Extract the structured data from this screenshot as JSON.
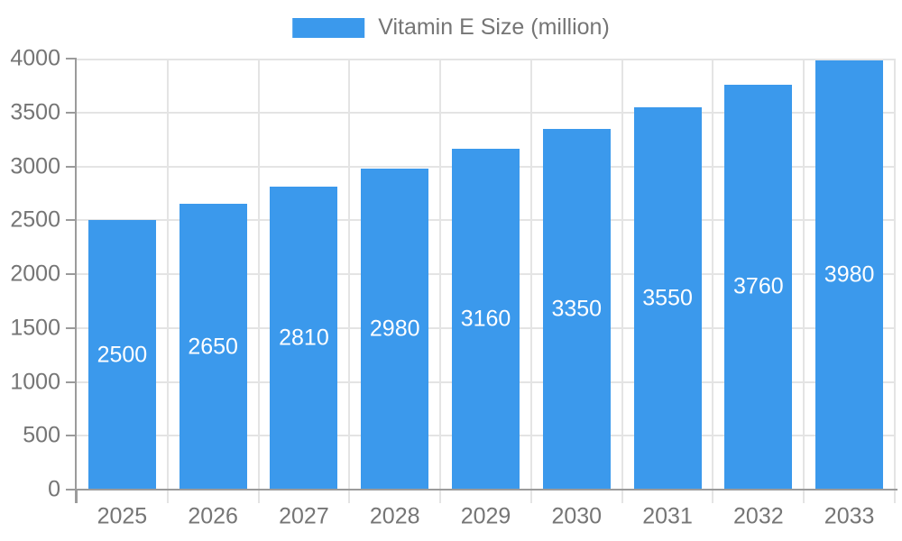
{
  "chart_data": {
    "type": "bar",
    "categories": [
      "2025",
      "2026",
      "2027",
      "2028",
      "2029",
      "2030",
      "2031",
      "2032",
      "2033"
    ],
    "series": [
      {
        "name": "Vitamin E Size (million)",
        "values": [
          2500,
          2650,
          2810,
          2980,
          3160,
          3350,
          3550,
          3760,
          3980
        ]
      }
    ],
    "xlabel": "",
    "ylabel": "",
    "ylim": [
      0,
      4000
    ],
    "yticks": [
      0,
      500,
      1000,
      1500,
      2000,
      2500,
      3000,
      3500,
      4000
    ],
    "grid": true,
    "data_labels": true,
    "legend_position": "top",
    "colors": {
      "bar": "#3B99EC",
      "grid": "#E4E4E4",
      "axis": "#9B9B9B",
      "text": "#757575",
      "data_label": "#FFFFFF",
      "background": "#FFFFFF"
    }
  }
}
